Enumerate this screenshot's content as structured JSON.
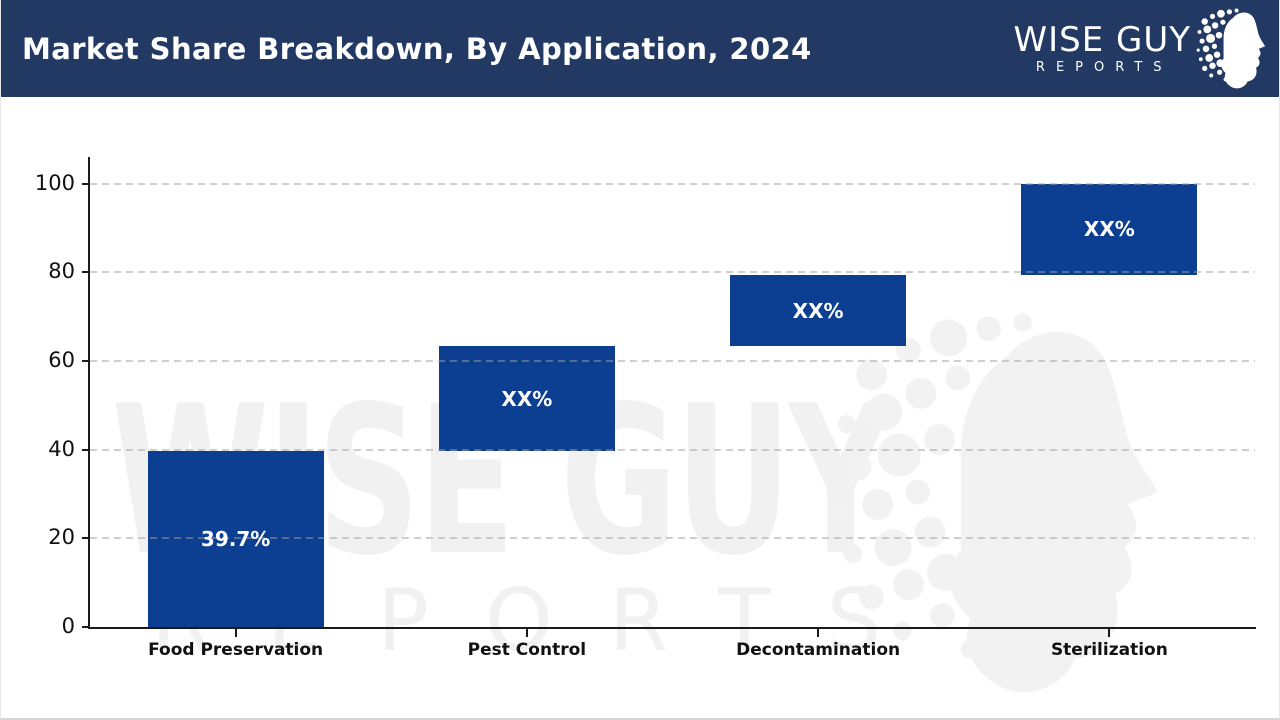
{
  "header": {
    "title": "Market Share Breakdown, By Application, 2024",
    "logo": {
      "line1": "WISE GUY",
      "line2": "REPORTS"
    }
  },
  "watermark": {
    "line1": "WISE GUY",
    "line2": "REPORTS"
  },
  "chart_data": {
    "type": "bar",
    "subtype": "waterfall",
    "title": "Market Share Breakdown, By Application, 2024",
    "categories": [
      "Food Preservation",
      "Pest Control",
      "Decontamination",
      "Sterilization"
    ],
    "segments": [
      {
        "category": "Food Preservation",
        "start": 0,
        "end": 39.7,
        "label": "39.7%"
      },
      {
        "category": "Pest Control",
        "start": 39.7,
        "end": 63.3,
        "label": "XX%"
      },
      {
        "category": "Decontamination",
        "start": 63.3,
        "end": 79.3,
        "label": "XX%"
      },
      {
        "category": "Sterilization",
        "start": 79.3,
        "end": 100,
        "label": "XX%"
      }
    ],
    "yticks": [
      0,
      20,
      40,
      60,
      80,
      100
    ],
    "ylim": [
      0,
      106
    ],
    "grid": "horizontal-dashed",
    "legend": "none",
    "bar_color": "#0c3e92",
    "bar_label_color": "#ffffff"
  },
  "colors": {
    "header_bg": "#223963",
    "header_text": "#ffffff",
    "bar": "#0c3e92",
    "axis": "#1a1a1a",
    "grid": "#d5d5d5",
    "watermark": "#f1f1f1"
  }
}
